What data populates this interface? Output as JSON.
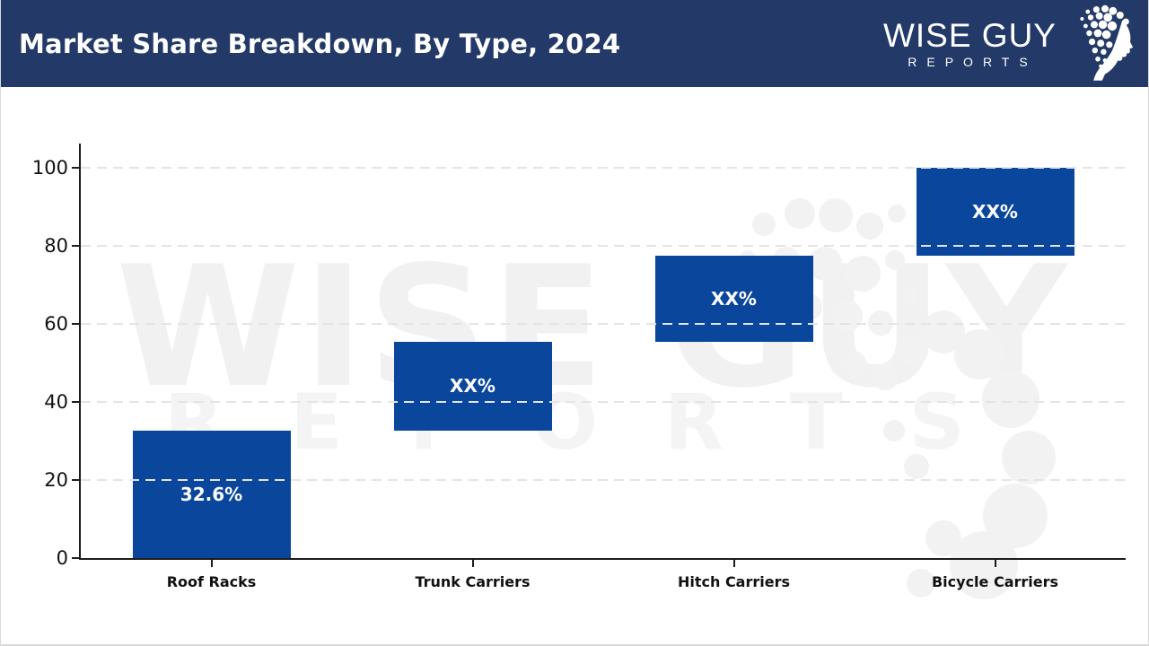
{
  "header": {
    "title": "Market Share Breakdown, By Type, 2024",
    "bg_color": "#233968",
    "logo": {
      "line1": "WISE GUY",
      "line2": "REPORTS"
    }
  },
  "watermark": {
    "line1": "WISE GUY",
    "line2": "R E P O R T S"
  },
  "chart_data": {
    "type": "bar",
    "subtype": "waterfall",
    "title": "Market Share Breakdown, By Type, 2024",
    "categories": [
      "Roof Racks",
      "Trunk Carriers",
      "Hitch Carriers",
      "Bicycle Carriers"
    ],
    "segments": [
      {
        "category": "Roof Racks",
        "start": 0,
        "end": 32.6,
        "label": "32.6%"
      },
      {
        "category": "Trunk Carriers",
        "start": 32.6,
        "end": 55.5,
        "label": "XX%"
      },
      {
        "category": "Hitch Carriers",
        "start": 55.5,
        "end": 77.5,
        "label": "XX%"
      },
      {
        "category": "Bicycle Carriers",
        "start": 77.5,
        "end": 100,
        "label": "XX%"
      }
    ],
    "xlabel": "",
    "ylabel": "",
    "ylim": [
      0,
      100
    ],
    "yticks": [
      0,
      20,
      40,
      60,
      80,
      100
    ],
    "grid": "dashed-horizontal",
    "legend": "none",
    "bar_color": "#0a479c",
    "bar_label_color": "#ffffff",
    "axis_color": "#1c1c1c"
  }
}
